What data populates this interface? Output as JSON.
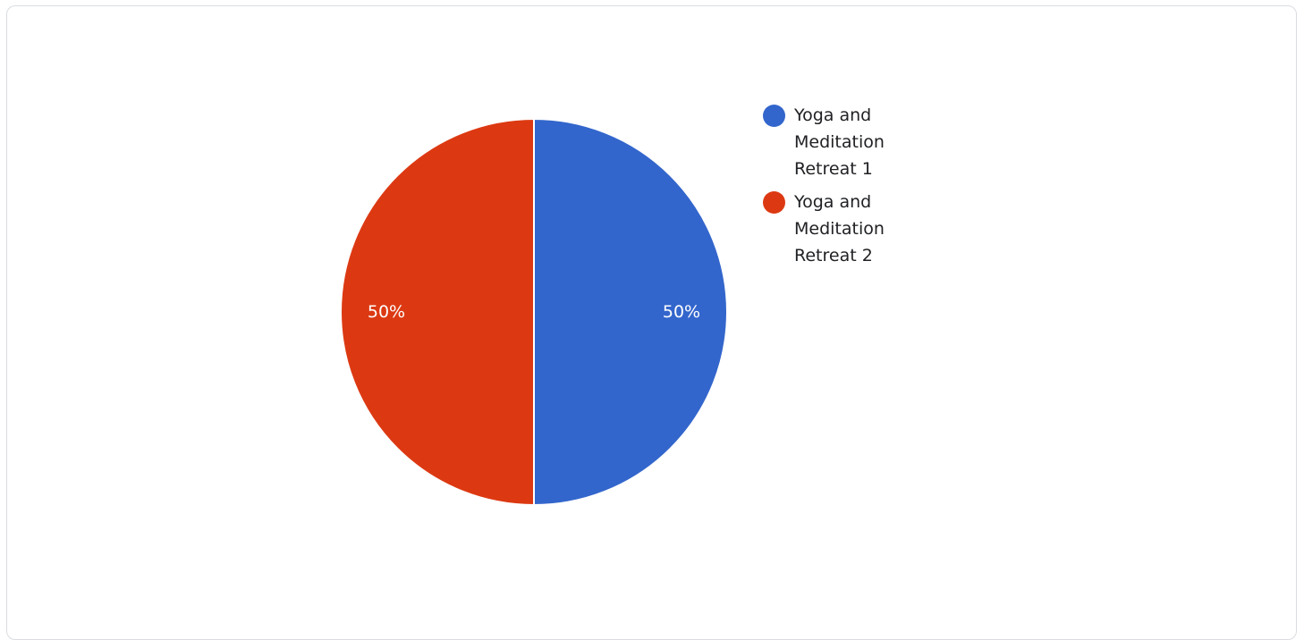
{
  "chart_data": {
    "type": "pie",
    "title": "",
    "legend_position": "right",
    "slices": [
      {
        "label": "Yoga and Meditation Retreat 1",
        "value": 50,
        "percent_label": "50%",
        "color": "#3366cc"
      },
      {
        "label": "Yoga and Meditation Retreat 2",
        "value": 50,
        "percent_label": "50%",
        "color": "#dc3912"
      }
    ]
  }
}
